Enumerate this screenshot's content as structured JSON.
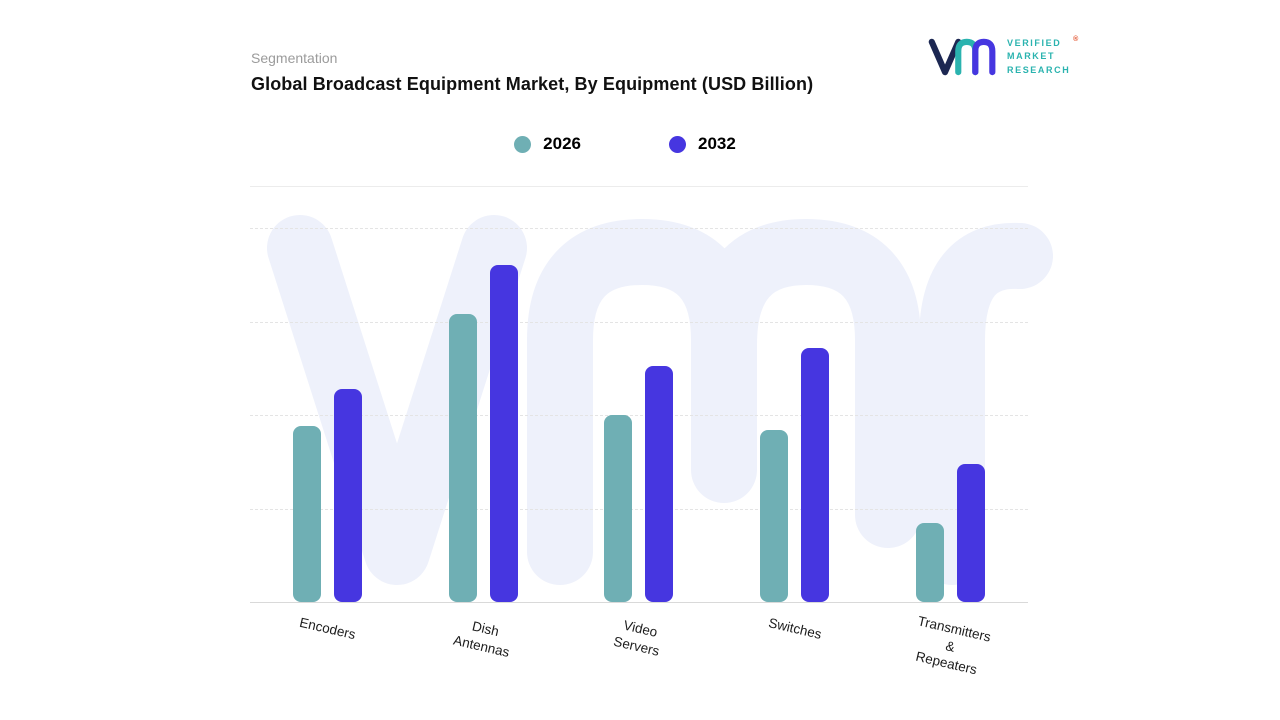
{
  "header": {
    "eyebrow": "Segmentation",
    "title": "Global Broadcast Equipment Market, By Equipment (USD Billion)"
  },
  "logo": {
    "brand_lines": [
      "VERIFIED",
      "MARKET",
      "RESEARCH"
    ],
    "registered": "®"
  },
  "legend": [
    {
      "label": "2026",
      "color": "#6fafb4"
    },
    {
      "label": "2032",
      "color": "#4636e0"
    }
  ],
  "chart_data": {
    "type": "bar",
    "title": "Global Broadcast Equipment Market, By Equipment (USD Billion)",
    "categories": [
      "Encoders",
      "Dish Antennas",
      "Video Servers",
      "Switches",
      "Transmitters &\nRepeaters"
    ],
    "series": [
      {
        "name": "2026",
        "color": "#6fafb4",
        "values": [
          4.7,
          7.7,
          5.0,
          4.6,
          2.1
        ]
      },
      {
        "name": "2032",
        "color": "#4636e0",
        "values": [
          5.7,
          9.0,
          6.3,
          6.8,
          3.7
        ]
      }
    ],
    "xlabel": "",
    "ylabel": "",
    "ylim": [
      0,
      10
    ],
    "grid": "horizontal-dashed",
    "legend_position": "top-center",
    "y_axis_labels_visible": false
  }
}
